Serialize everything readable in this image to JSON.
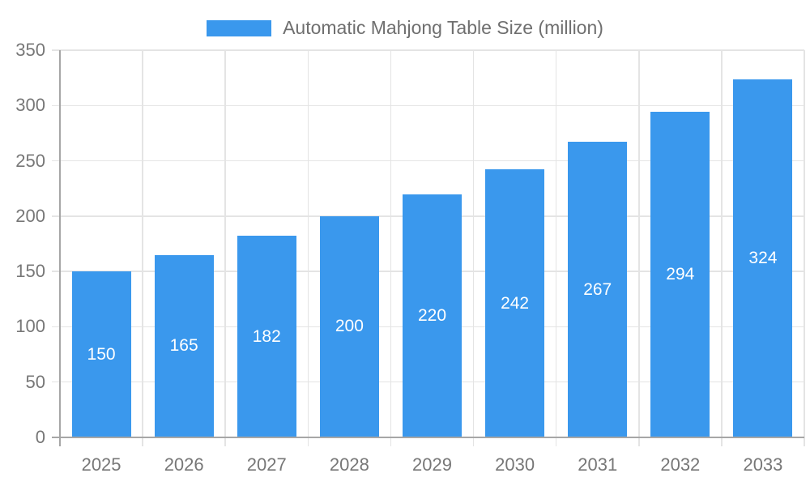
{
  "legend": {
    "label": "Automatic Mahjong Table Size (million)"
  },
  "chart_data": {
    "type": "bar",
    "title": "Automatic Mahjong Table Size (million)",
    "categories": [
      "2025",
      "2026",
      "2027",
      "2028",
      "2029",
      "2030",
      "2031",
      "2032",
      "2033"
    ],
    "values": [
      150,
      165,
      182,
      200,
      220,
      242,
      267,
      294,
      324
    ],
    "xlabel": "",
    "ylabel": "",
    "ylim": [
      0,
      350
    ],
    "yticks": [
      0,
      50,
      100,
      150,
      200,
      250,
      300,
      350
    ],
    "grid": "both",
    "legend_position": "top",
    "value_labels": "inside-center",
    "colors": {
      "bar": "#3a98ed",
      "grid": "#e4e4e4",
      "axis": "#a6a6a6",
      "axis_text": "#777777",
      "legend_text": "#6f6f6f",
      "value_label": "#ffffff",
      "background": "#ffffff"
    }
  }
}
